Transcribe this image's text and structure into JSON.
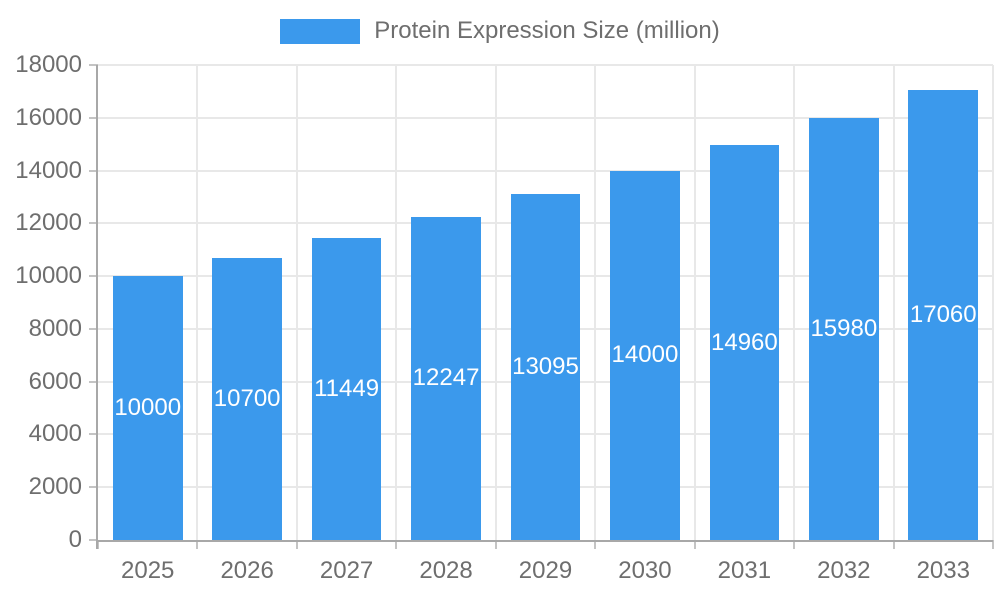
{
  "chart_data": {
    "type": "bar",
    "title": "",
    "legend_label": "Protein Expression Size (million)",
    "legend_position": "top",
    "categories": [
      "2025",
      "2026",
      "2027",
      "2028",
      "2029",
      "2030",
      "2031",
      "2032",
      "2033"
    ],
    "series": [
      {
        "name": "Protein Expression Size (million)",
        "values": [
          10000,
          10700,
          11449,
          12247,
          13095,
          14000,
          14960,
          15980,
          17060
        ]
      }
    ],
    "yticks": [
      0,
      2000,
      4000,
      6000,
      8000,
      10000,
      12000,
      14000,
      16000,
      18000
    ],
    "ylim": [
      0,
      18000
    ],
    "grid": "horizontal and vertical gridlines on, ticks outside axes",
    "value_labels": {
      "position": "center-of-bar",
      "color": "#ffffff"
    },
    "colors": {
      "bar": "#3b99ec",
      "grid": "#e8e8e8",
      "axis": "#a8a8a8",
      "tick": "#c4c4c4",
      "text": "#6e6e6e",
      "background": "#ffffff"
    }
  }
}
